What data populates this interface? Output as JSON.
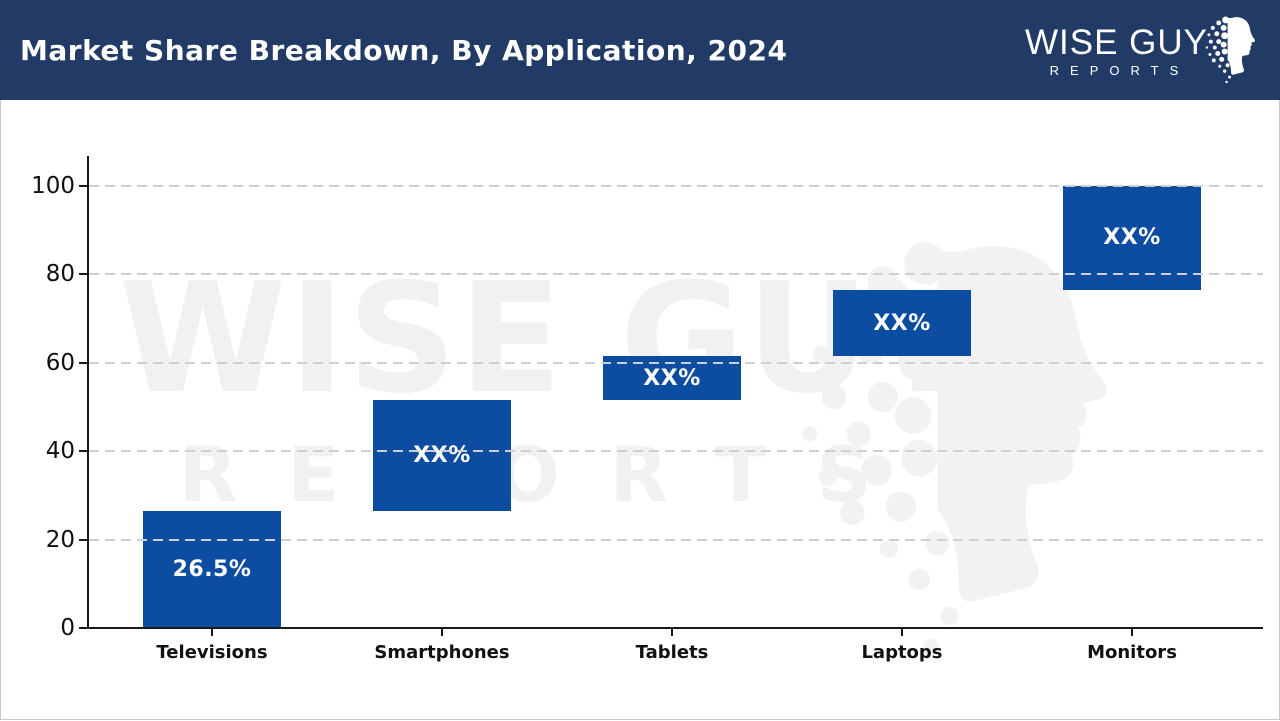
{
  "header": {
    "title": "Market Share Breakdown, By Application, 2024",
    "logo": {
      "line1": "WISE GUY",
      "line2": "REPORTS"
    }
  },
  "watermark": {
    "line1": "WISE GUY",
    "line2": "REPORTS"
  },
  "colors": {
    "header_bg": "#213A66",
    "bar": "#0C4DA2",
    "grid": "#cfcfcf",
    "axis": "#1a1a1a",
    "watermark": "#f1f1f4",
    "title_text": "#ffffff",
    "bar_label_text": "#ffffff"
  },
  "chart_data": {
    "type": "bar",
    "subtype": "waterfall-steps",
    "title": "Market Share Breakdown, By Application, 2024",
    "xlabel": "",
    "ylabel": "",
    "ylim": [
      0,
      105
    ],
    "yticks": [
      0,
      20,
      40,
      60,
      80,
      100
    ],
    "grid": "dashed-horizontal-over-bars",
    "legend": "none",
    "categories": [
      "Televisions",
      "Smartphones",
      "Tablets",
      "Laptops",
      "Monitors"
    ],
    "segments": [
      {
        "category": "Televisions",
        "label": "26.5%",
        "start": 0,
        "end": 26.5
      },
      {
        "category": "Smartphones",
        "label": "XX%",
        "start": 26.5,
        "end": 51.5
      },
      {
        "category": "Tablets",
        "label": "XX%",
        "start": 51.5,
        "end": 61.5
      },
      {
        "category": "Laptops",
        "label": "XX%",
        "start": 61.5,
        "end": 76.5
      },
      {
        "category": "Monitors",
        "label": "XX%",
        "start": 76.5,
        "end": 100
      }
    ]
  }
}
